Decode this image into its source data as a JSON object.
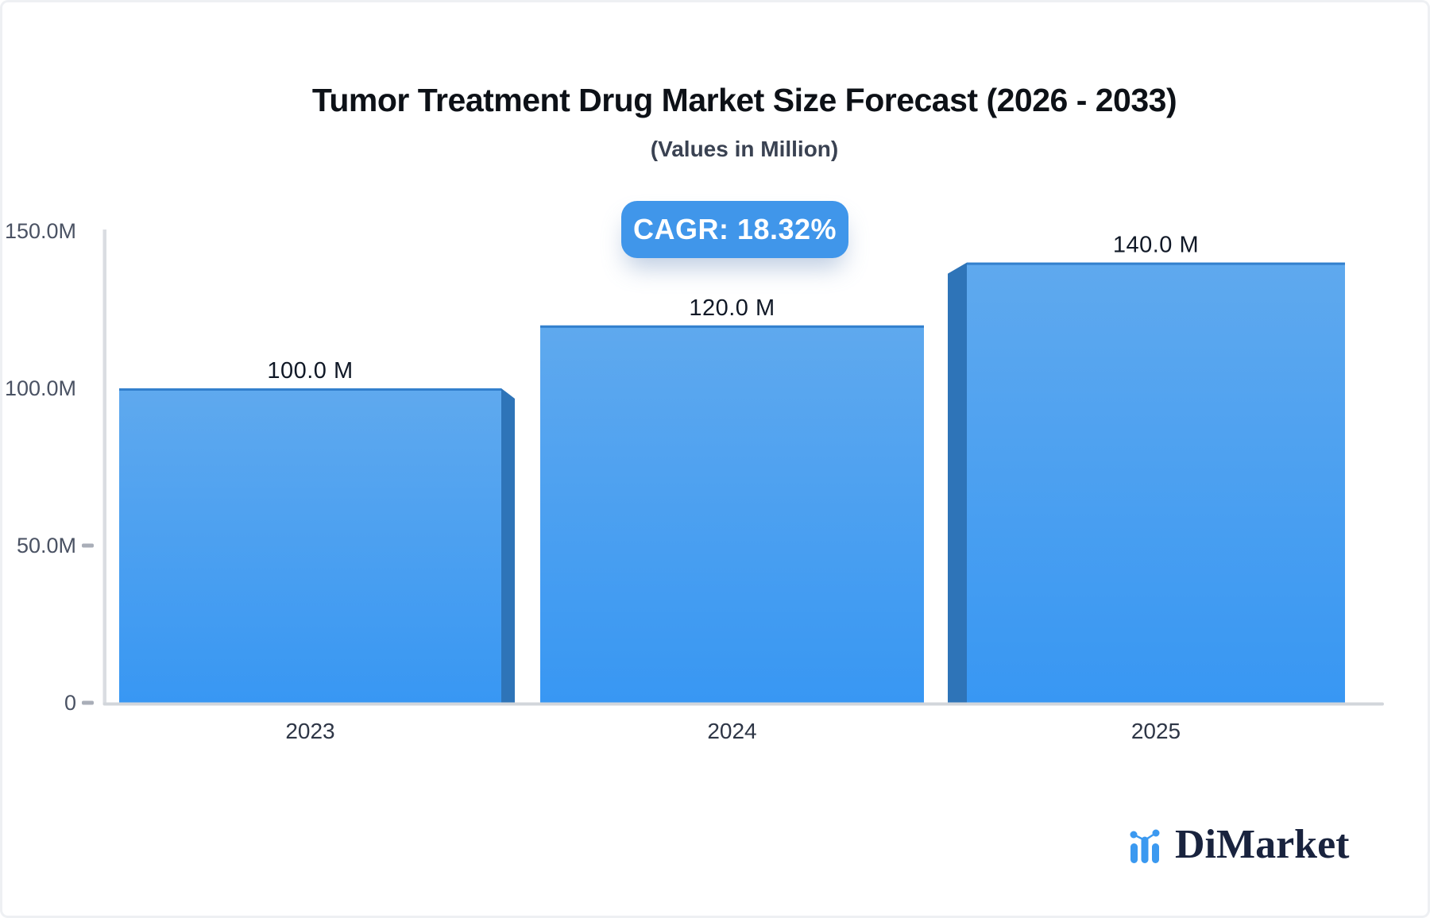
{
  "chart_data": {
    "type": "bar",
    "title": "Tumor Treatment Drug Market Size Forecast (2026 - 2033)",
    "subtitle": "(Values in Million)",
    "badge_label": "CAGR: 18.32%",
    "categories": [
      "2023",
      "2024",
      "2025"
    ],
    "values": [
      100,
      120,
      140
    ],
    "bar_value_labels": [
      "100.0 M",
      "120.0 M",
      "140.0 M"
    ],
    "y_ticks": [
      {
        "label": "150.0M",
        "value": 150,
        "dash": false
      },
      {
        "label": "100.0M",
        "value": 100,
        "dash": false
      },
      {
        "label": "50.0M",
        "value": 50,
        "dash": true
      },
      {
        "label": "0",
        "value": 0,
        "dash": true
      }
    ],
    "ylim": [
      0,
      150
    ],
    "xlabel": "",
    "ylabel": "",
    "grid": false,
    "legend": false,
    "colors": {
      "bar_gradient_top": "#5FA9EE",
      "bar_gradient_bottom": "#3897F3",
      "bar_side_face": "#2E74B8",
      "bar_top_border": "#3380CD",
      "badge_background": "#4096EA",
      "axis_line": "#DADDE2",
      "baseline": "#D2D6DB",
      "tick_dash": "#A9AEB8",
      "y_label_text": "#4A5263",
      "x_label_text": "#2E3646",
      "value_label_text": "#101826"
    }
  },
  "branding": {
    "logo_text": "DiMarket",
    "logo_icon": "bar-line-chart-icon",
    "logo_icon_color": "#3B99F0",
    "logo_text_color": "#19233E"
  }
}
